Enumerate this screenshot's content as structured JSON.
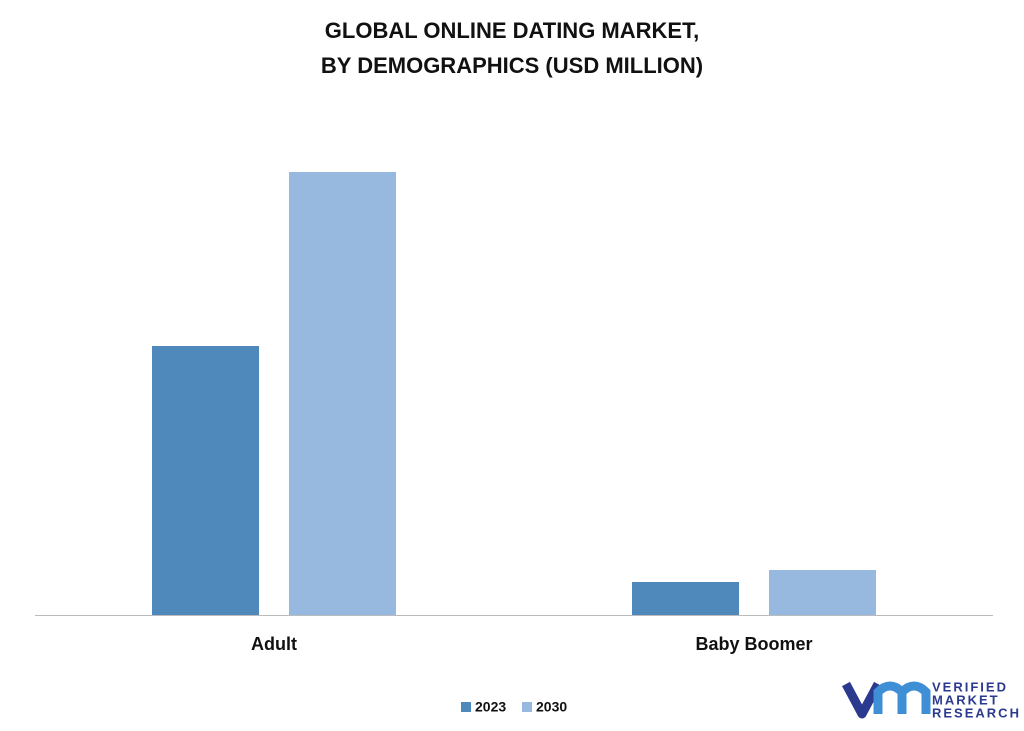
{
  "chart_data": {
    "type": "bar",
    "title": [
      "GLOBAL ONLINE DATING MARKET,",
      "BY DEMOGRAPHICS (USD MILLION)"
    ],
    "categories": [
      "Adult",
      "Baby Boomer"
    ],
    "series": [
      {
        "name": "2023",
        "color": "#4f88bb",
        "values": [
          269,
          33
        ]
      },
      {
        "name": "2030",
        "color": "#98b9df",
        "values": [
          443,
          45
        ]
      }
    ]
  },
  "logo": {
    "lines": [
      "VERIFIED",
      "MARKET",
      "RESEARCH"
    ]
  }
}
